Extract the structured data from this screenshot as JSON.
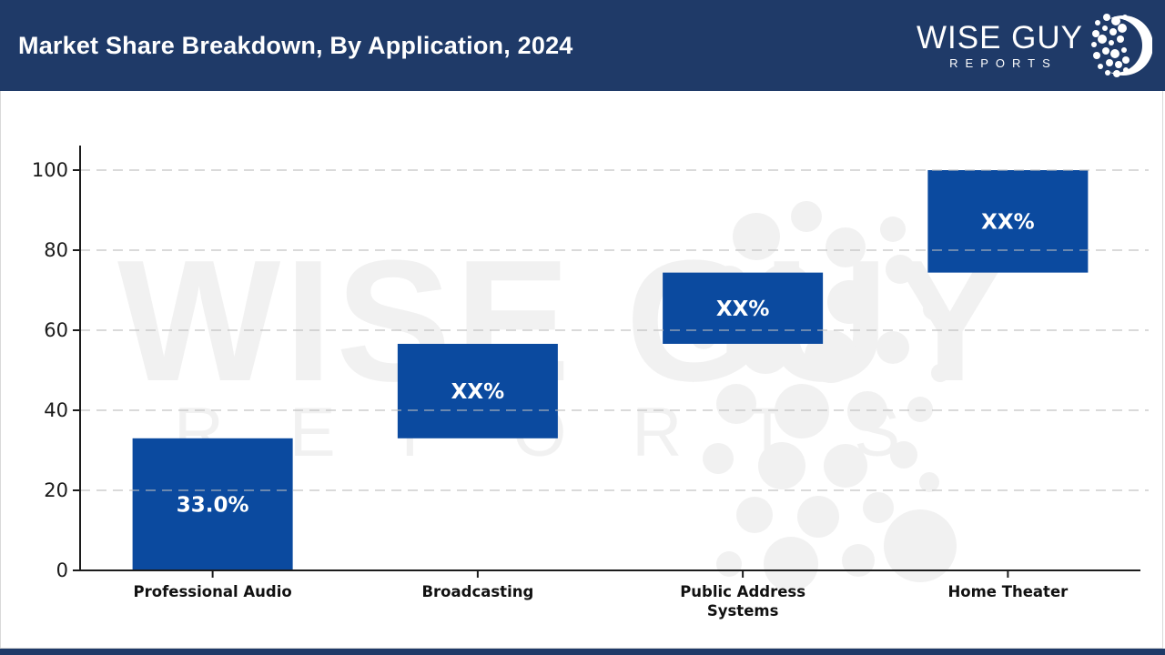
{
  "header": {
    "title": "Market Share Breakdown, By Application, 2024",
    "logo": {
      "line1": "WISE GUY",
      "line2": "REPORTS"
    }
  },
  "watermark": {
    "line1": "WISE GUY",
    "line2": "REPORTS"
  },
  "colors": {
    "header_bg": "#1f3a68",
    "bar": "#0b4a9f",
    "gridline": "#e0e0e0",
    "watermark": "#f1f1f1",
    "axis": "#1c1c1c"
  },
  "chart_data": {
    "type": "bar",
    "subtype": "waterfall",
    "title": "Market Share Breakdown, By Application, 2024",
    "categories": [
      "Professional Audio",
      "Broadcasting",
      "Public Address\nSystems",
      "Home Theater"
    ],
    "segments": [
      {
        "start": 0,
        "end": 33.0
      },
      {
        "start": 33.0,
        "end": 56.6
      },
      {
        "start": 56.6,
        "end": 74.4
      },
      {
        "start": 74.4,
        "end": 100.0
      }
    ],
    "increments": [
      33.0,
      23.6,
      17.8,
      25.6
    ],
    "labels": [
      "33.0%",
      "XX%",
      "XX%",
      "XX%"
    ],
    "xlabel": "",
    "ylabel": "",
    "ylim": [
      0,
      100
    ],
    "yticks": [
      0,
      20,
      40,
      60,
      80,
      100
    ],
    "grid": "horizontal-dashed",
    "legend": "none"
  }
}
